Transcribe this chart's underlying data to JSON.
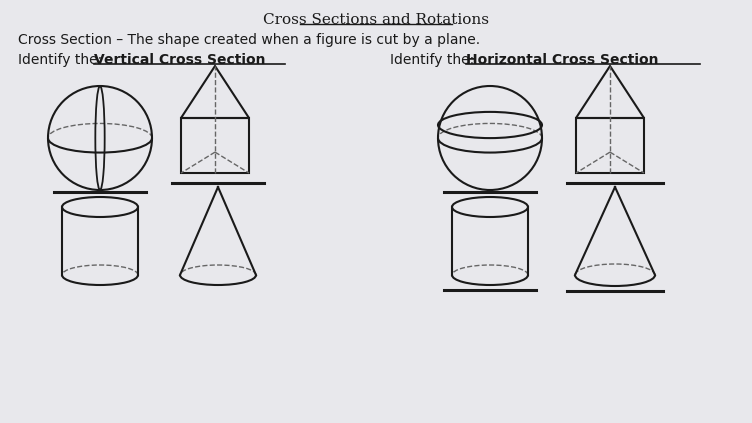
{
  "title": "Cross Sections and Rotations",
  "definition": "Cross Section – The shape created when a figure is cut by a plane.",
  "label_left": "Identify the: ",
  "label_left_bold": "Vertical Cross Section",
  "label_right": "Identify the: ",
  "label_right_bold": "Horizontal Cross Section",
  "bg_color": "#e8e8ec",
  "line_color": "#1a1a1a",
  "dashed_color": "#666666"
}
